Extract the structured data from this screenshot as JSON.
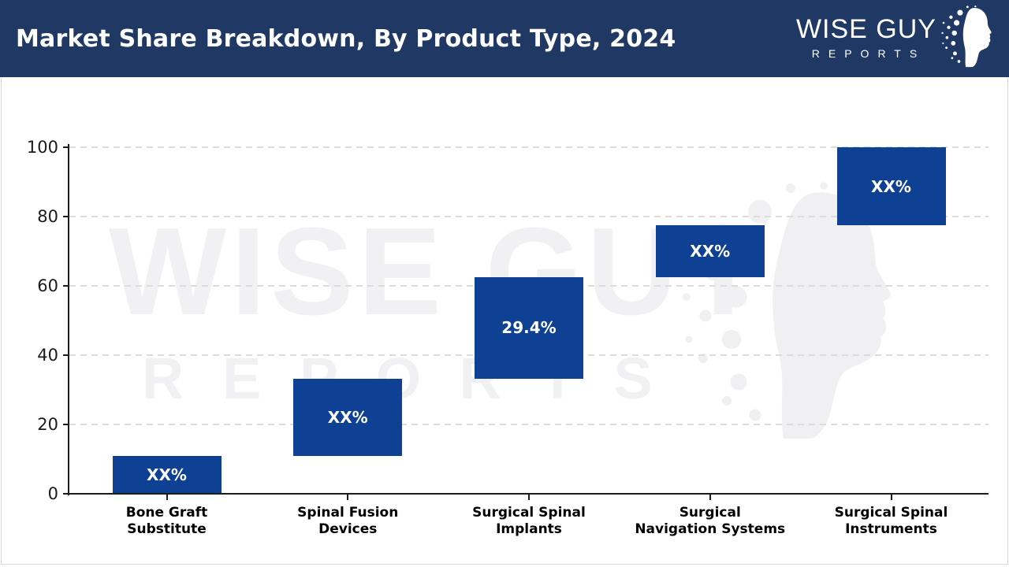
{
  "header": {
    "title": "Market Share Breakdown, By Product Type, 2024",
    "bg_color": "#1f3864",
    "logo": {
      "line1": "WISE GUY",
      "line2": "REPORTS"
    }
  },
  "watermark": {
    "line1": "WISE GUY",
    "line2": "R E P O R T S"
  },
  "chart_data": {
    "type": "bar",
    "subtype": "waterfall-market-share",
    "title": "Market Share Breakdown, By Product Type, 2024",
    "xlabel": "",
    "ylabel": "",
    "ylim": [
      0,
      100
    ],
    "yticks": [
      0,
      20,
      40,
      60,
      80,
      100
    ],
    "grid": "horizontal-dashed",
    "legend": "none",
    "bar_color": "#0e4194",
    "categories": [
      "Bone Graft\nSubstitute",
      "Spinal Fusion\nDevices",
      "Surgical Spinal\nImplants",
      "Surgical\nNavigation Systems",
      "Surgical Spinal\nInstruments"
    ],
    "segments": [
      {
        "category": "Bone Graft Substitute",
        "label": "XX%",
        "start": 0,
        "end": 11,
        "height_pct": 11.0
      },
      {
        "category": "Spinal Fusion Devices",
        "label": "XX%",
        "start": 11,
        "end": 33.2,
        "height_pct": 22.2
      },
      {
        "category": "Surgical Spinal Implants",
        "label": "29.4%",
        "start": 33.2,
        "end": 62.6,
        "height_pct": 29.4
      },
      {
        "category": "Surgical Navigation Systems",
        "label": "XX%",
        "start": 62.6,
        "end": 77.4,
        "height_pct": 14.8
      },
      {
        "category": "Surgical Spinal Instruments",
        "label": "XX%",
        "start": 77.4,
        "end": 100,
        "height_pct": 22.6
      }
    ]
  }
}
